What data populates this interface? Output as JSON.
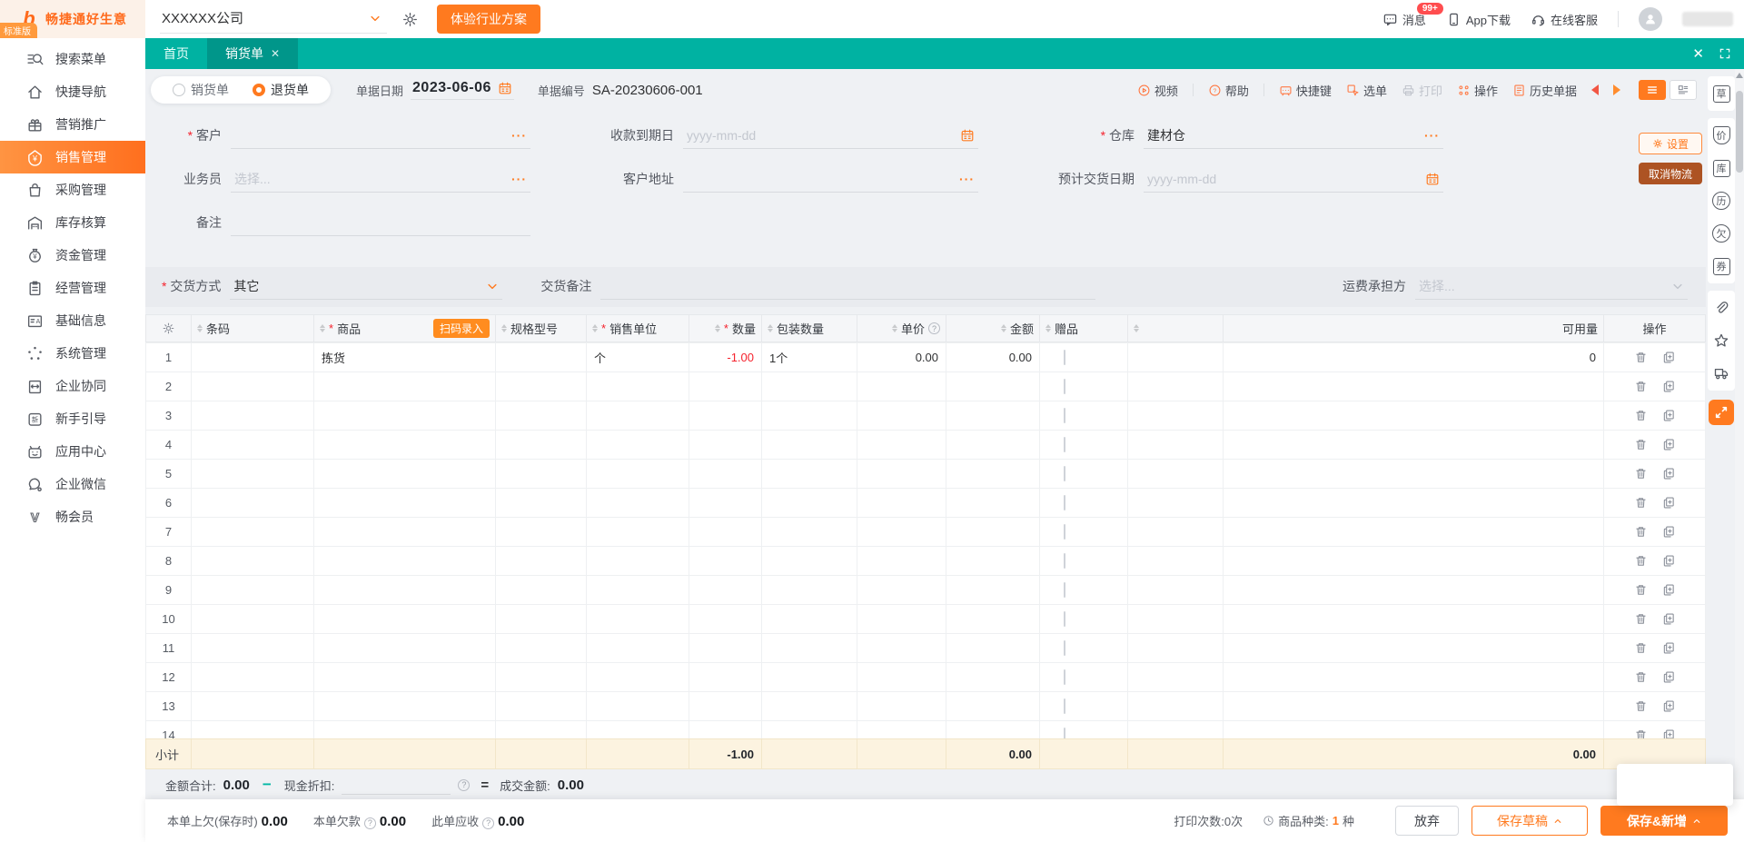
{
  "topbar": {
    "brand": "畅捷通好生意",
    "edition": "标准版",
    "company": "XXXXXX公司",
    "trial_button": "体验行业方案",
    "messages_label": "消息",
    "messages_badge": "99+",
    "app_download_label": "App下载",
    "online_service_label": "在线客服"
  },
  "tabs": [
    {
      "name": "tab-home",
      "label": "首页",
      "active": false,
      "closable": false
    },
    {
      "name": "tab-sales-order",
      "label": "销货单",
      "active": true,
      "closable": true
    }
  ],
  "sidebar": {
    "items": [
      {
        "name": "search-menu",
        "icon": "search-icon",
        "label": "搜索菜单",
        "active": false
      },
      {
        "name": "quick-nav",
        "icon": "home-icon",
        "label": "快捷导航",
        "active": false
      },
      {
        "name": "marketing",
        "icon": "gift-icon",
        "label": "营销推广",
        "active": false
      },
      {
        "name": "sales-management",
        "icon": "sales-icon",
        "label": "销售管理",
        "active": true
      },
      {
        "name": "purchase-management",
        "icon": "purchase-bag-icon",
        "label": "采购管理",
        "active": false
      },
      {
        "name": "inventory-accounting",
        "icon": "warehouse-icon",
        "label": "库存核算",
        "active": false
      },
      {
        "name": "funds-management",
        "icon": "money-bag-icon",
        "label": "资金管理",
        "active": false
      },
      {
        "name": "business-management",
        "icon": "clipboard-icon",
        "label": "经营管理",
        "active": false
      },
      {
        "name": "basic-info",
        "icon": "idcard-icon",
        "label": "基础信息",
        "active": false
      },
      {
        "name": "system-management",
        "icon": "system-icon",
        "label": "系统管理",
        "active": false
      },
      {
        "name": "enterprise-collab",
        "icon": "collab-icon",
        "label": "企业协同",
        "active": false
      },
      {
        "name": "beginner-guide",
        "icon": "guide-icon",
        "label": "新手引导",
        "active": false
      },
      {
        "name": "app-center",
        "icon": "appcenter-icon",
        "label": "应用中心",
        "active": false
      },
      {
        "name": "enterprise-wechat",
        "icon": "wechat-icon",
        "label": "企业微信",
        "active": false
      },
      {
        "name": "chang-member",
        "icon": "member-icon",
        "label": "畅会员",
        "active": false
      }
    ]
  },
  "doc": {
    "radio_sale": "销货单",
    "radio_return": "退货单",
    "date_label": "单据日期",
    "date_value": "2023-06-06",
    "no_label": "单据编号",
    "no_value": "SA-20230606-001",
    "actions": [
      {
        "name": "video",
        "icon": "video-icon",
        "label": "视频",
        "divider_after": true
      },
      {
        "name": "help",
        "icon": "help-icon",
        "label": "帮助",
        "divider_after": true
      },
      {
        "name": "shortcut-keys",
        "icon": "shortcut-icon",
        "label": "快捷键"
      },
      {
        "name": "pick-order",
        "icon": "pick-icon",
        "label": "选单"
      },
      {
        "name": "print",
        "icon": "print-icon",
        "label": "打印",
        "disabled": true
      },
      {
        "name": "operations",
        "icon": "opsgrid-icon",
        "label": "操作"
      },
      {
        "name": "history-docs",
        "icon": "history-icon",
        "label": "历史单据"
      }
    ]
  },
  "form": {
    "customer_label": "客户",
    "due_date_label": "收款到期日",
    "due_date_placeholder": "yyyy-mm-dd",
    "warehouse_label": "仓库",
    "warehouse_value": "建材仓",
    "salesman_label": "业务员",
    "salesman_placeholder": "选择...",
    "address_label": "客户地址",
    "delivery_date_label": "预计交货日期",
    "delivery_date_placeholder": "yyyy-mm-dd",
    "remark_label": "备注",
    "settings_button": "设置",
    "cancel_logistics_button": "取消物流"
  },
  "delivery": {
    "method_label": "交货方式",
    "method_value": "其它",
    "note_label": "交货备注",
    "freight_label": "运费承担方",
    "freight_placeholder": "选择..."
  },
  "table": {
    "columns": [
      {
        "key": "num",
        "label": "",
        "header_icon": "gear-icon"
      },
      {
        "key": "barcode",
        "label": "条码",
        "sortable": true
      },
      {
        "key": "product",
        "label": "商品",
        "required": true,
        "sortable": true,
        "badge": "扫码录入"
      },
      {
        "key": "spec",
        "label": "规格型号",
        "sortable": true
      },
      {
        "key": "unit",
        "label": "销售单位",
        "required": true,
        "sortable": true
      },
      {
        "key": "qty",
        "label": "数量",
        "required": true,
        "sortable": true,
        "align": "right"
      },
      {
        "key": "pack",
        "label": "包装数量",
        "sortable": true
      },
      {
        "key": "price",
        "label": "单价",
        "sortable": true,
        "align": "right",
        "info": true
      },
      {
        "key": "amount",
        "label": "金额",
        "sortable": true,
        "align": "right"
      },
      {
        "key": "gift",
        "label": "赠品",
        "sortable": true,
        "type": "checkbox"
      },
      {
        "key": "extra",
        "label": "",
        "sortable": true
      },
      {
        "key": "available",
        "label": "可用量",
        "align": "right"
      },
      {
        "key": "ops",
        "label": "操作",
        "type": "ops",
        "align": "center"
      }
    ],
    "rows": [
      {
        "num": "1",
        "barcode": "",
        "product": "拣货",
        "spec": "",
        "unit": "个",
        "qty": "-1.00",
        "pack": "1个",
        "price": "0.00",
        "amount": "0.00",
        "extra": "",
        "available": "0"
      },
      {
        "num": "2"
      },
      {
        "num": "3"
      },
      {
        "num": "4"
      },
      {
        "num": "5"
      },
      {
        "num": "6"
      },
      {
        "num": "7"
      },
      {
        "num": "8"
      },
      {
        "num": "9"
      },
      {
        "num": "10"
      },
      {
        "num": "11"
      },
      {
        "num": "12"
      },
      {
        "num": "13"
      },
      {
        "num": "14"
      }
    ],
    "subtotal": {
      "label": "小计",
      "qty": "-1.00",
      "amount": "0.00",
      "available": "0.00"
    }
  },
  "totals": {
    "amount_total_label": "金额合计:",
    "amount_total": "0.00",
    "cash_discount_label": "现金折扣:",
    "deal_amount_label": "成交金额:",
    "deal_amount": "0.00"
  },
  "footer": {
    "stats": [
      {
        "name": "prev-arrears",
        "label": "本单上欠(保存时)",
        "value": "0.00",
        "info": false
      },
      {
        "name": "this-arrears",
        "label": "本单欠款",
        "value": "0.00",
        "info": true
      },
      {
        "name": "receivable",
        "label": "此单应收",
        "value": "0.00",
        "info": true
      }
    ],
    "print_count": "打印次数:0次",
    "kind_label": "商品种类:",
    "kind_count": "1",
    "kind_unit": "种",
    "discard_button": "放弃",
    "save_draft_button": "保存草稿",
    "save_new_button": "保存&新增"
  },
  "right_rail": {
    "items": [
      {
        "name": "draft-note-icon",
        "type": "box",
        "label": "草",
        "group": 1
      },
      {
        "name": "price-shield-icon",
        "type": "shield",
        "label": "价",
        "group": 2
      },
      {
        "name": "stock-box-icon",
        "type": "box",
        "label": "库",
        "group": 2
      },
      {
        "name": "history-circle-icon",
        "type": "circle",
        "label": "历",
        "group": 2
      },
      {
        "name": "arrears-circle-icon",
        "type": "circle",
        "label": "欠",
        "group": 2
      },
      {
        "name": "coupon-box-icon",
        "type": "box",
        "label": "券",
        "group": 2
      },
      {
        "name": "attachment-icon",
        "type": "svg",
        "icon": "paperclip-icon",
        "group": 3
      },
      {
        "name": "favorite-star-icon",
        "type": "svg",
        "icon": "star-icon",
        "group": 3
      },
      {
        "name": "logistics-truck-icon",
        "type": "svg",
        "icon": "truck-icon",
        "group": 3
      }
    ]
  },
  "colors": {
    "accent": "#ff7a1f",
    "teal": "#00b2a2",
    "teal_dark": "#00968a",
    "negative": "#f5222d",
    "subtotal_bg": "#fcf3e0"
  }
}
